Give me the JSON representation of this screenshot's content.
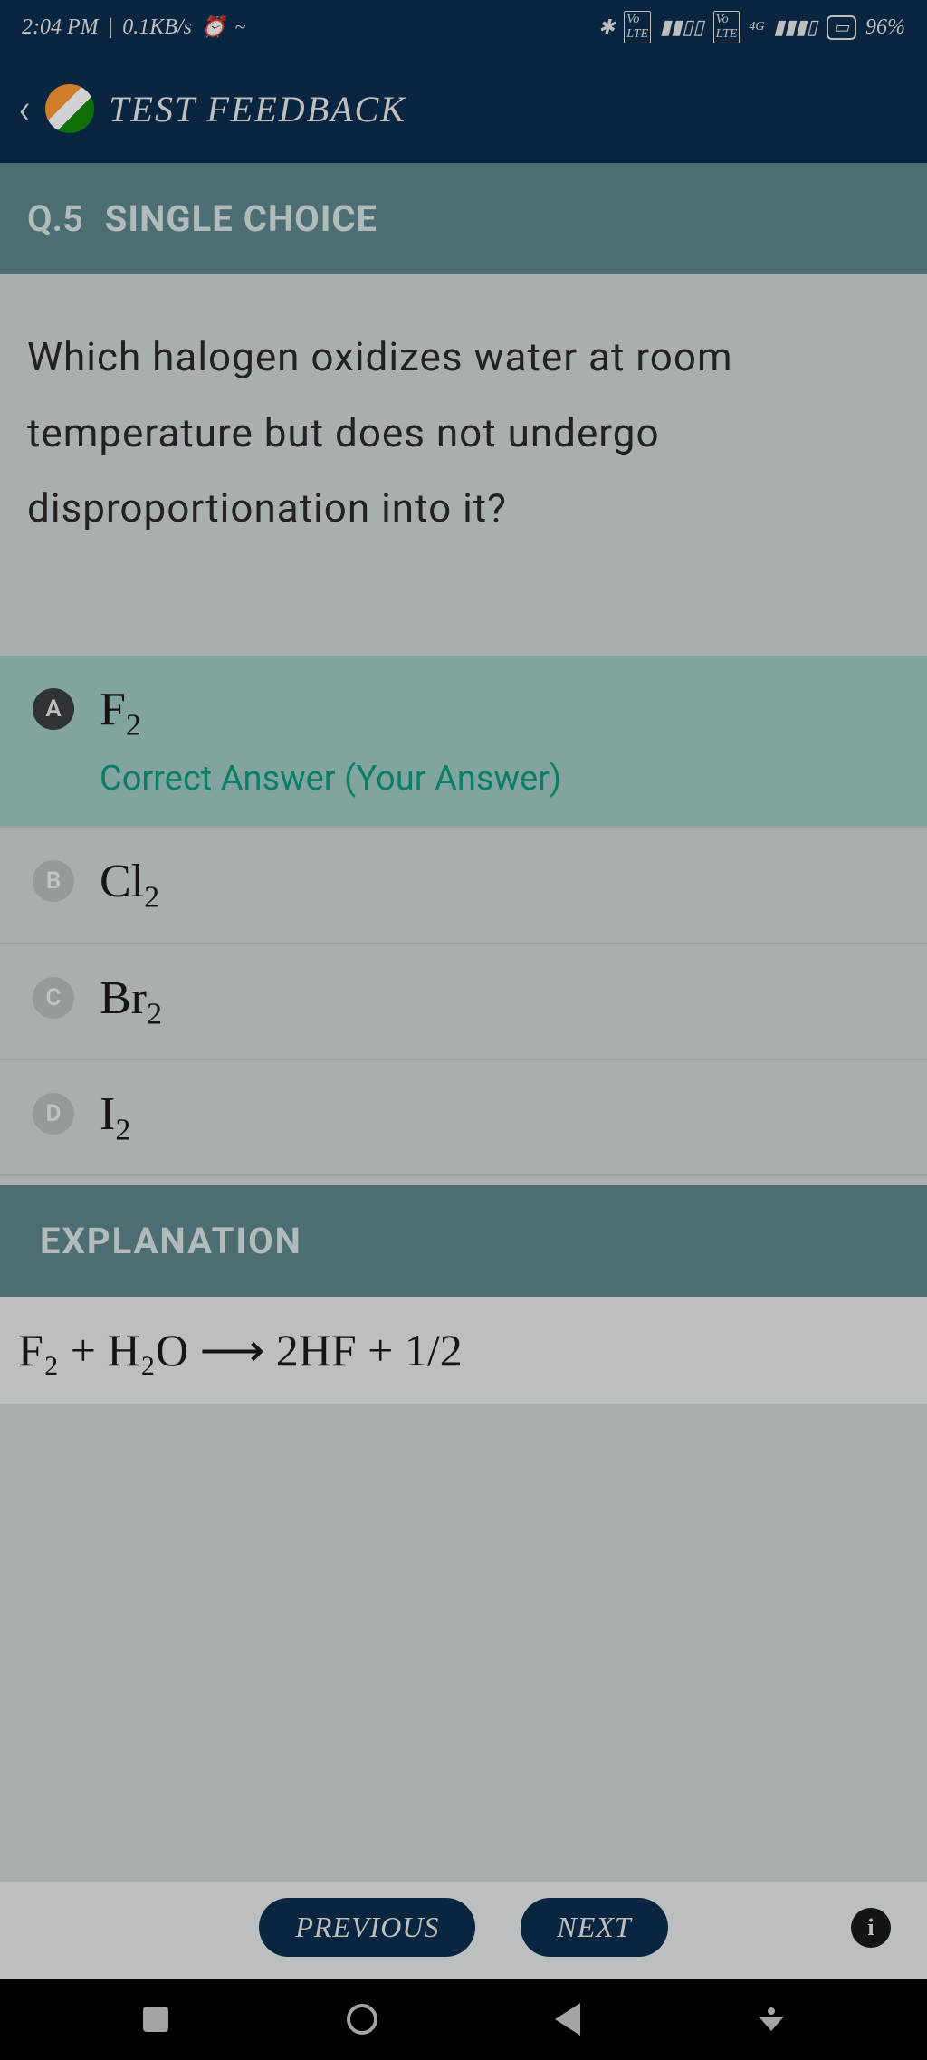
{
  "status_bar": {
    "time": "2:04 PM",
    "speed": "0.1KB/s",
    "battery": "96%"
  },
  "header": {
    "title": "TEST FEEDBACK"
  },
  "question": {
    "number": "Q.5",
    "type": "SINGLE CHOICE",
    "text": "Which halogen oxidizes water at room temperature but does not undergo disproportionation into it?"
  },
  "options": [
    {
      "letter": "A",
      "formula_base": "F",
      "formula_sub": "2",
      "correct": true,
      "correct_label": "Correct Answer (Your Answer)"
    },
    {
      "letter": "B",
      "formula_base": "Cl",
      "formula_sub": "2",
      "correct": false
    },
    {
      "letter": "C",
      "formula_base": "Br",
      "formula_sub": "2",
      "correct": false
    },
    {
      "letter": "D",
      "formula_base": "I",
      "formula_sub": "2",
      "correct": false
    }
  ],
  "explanation": {
    "title": "EXPLANATION",
    "equation": "F₂ + H₂O ⟶ 2HF + 1/2"
  },
  "nav": {
    "previous": "PREVIOUS",
    "next": "NEXT"
  },
  "colors": {
    "header_bg": "#0b2e4f",
    "section_bg": "#5d868c",
    "body_bg": "#cfd6d7",
    "correct_bg": "#9ec9c2",
    "correct_text": "#0d9b77",
    "button_bg": "#0b2e4f"
  }
}
